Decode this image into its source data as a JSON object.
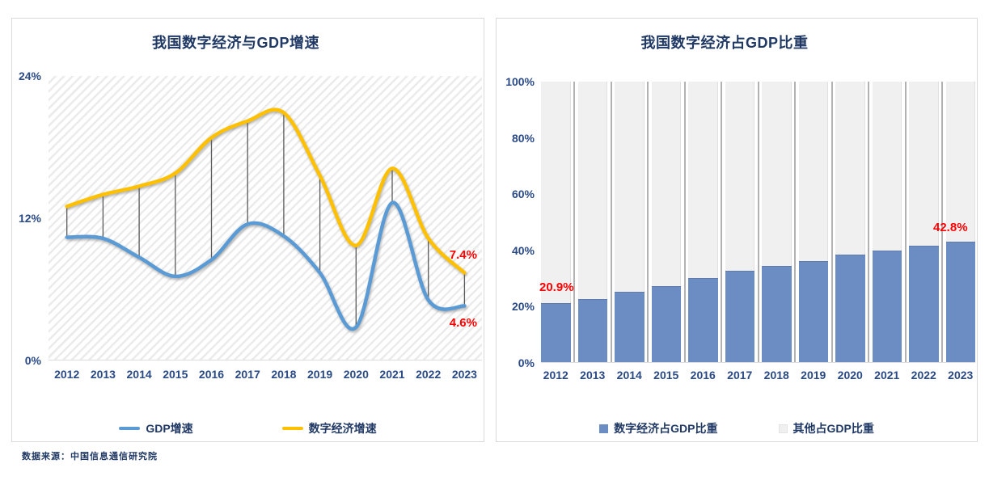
{
  "source_note": "数据来源：中国信息通信研究院",
  "accent_colors": {
    "title_navy": "#1f3864",
    "axis_navy": "#2a4a86",
    "annotation_red": "#ff0000",
    "gdp_line_blue": "#5b9bd5",
    "digital_line_yellow": "#ffc000",
    "bar_blue": "#6b8dc3",
    "bar_gray": "#f0f0f0",
    "high_low_line_gray": "#595959"
  },
  "chart_data": [
    {
      "type": "line",
      "title": "我国数字经济与GDP增速",
      "x": [
        "2012",
        "2013",
        "2014",
        "2015",
        "2016",
        "2017",
        "2018",
        "2019",
        "2020",
        "2021",
        "2022",
        "2023"
      ],
      "series": [
        {
          "name": "GDP增速",
          "color": "#5b9bd5",
          "values": [
            10.4,
            10.3,
            8.7,
            7.1,
            8.5,
            11.5,
            10.5,
            7.4,
            2.8,
            13.3,
            5.1,
            4.6
          ]
        },
        {
          "name": "数字经济增速",
          "color": "#ffc000",
          "values": [
            13.0,
            14.0,
            14.7,
            15.8,
            18.8,
            20.2,
            20.9,
            15.6,
            9.7,
            16.2,
            10.3,
            7.4
          ]
        }
      ],
      "ylim": [
        0,
        24
      ],
      "y_ticks": [
        {
          "value": 24,
          "label": "24%"
        },
        {
          "value": 12,
          "label": "12%"
        },
        {
          "value": 0,
          "label": "0%"
        }
      ],
      "grid": false,
      "high_low_lines": true,
      "smooth": true,
      "legend_position": "bottom",
      "plot_background": "diagonal-hatch",
      "annotations": [
        {
          "text": "7.4%",
          "series": "数字经济增速",
          "x": "2023",
          "color": "#ff0000"
        },
        {
          "text": "4.6%",
          "series": "GDP增速",
          "x": "2023",
          "color": "#ff0000"
        }
      ]
    },
    {
      "type": "bar",
      "stacked": true,
      "title": "我国数字经济占GDP比重",
      "categories": [
        "2012",
        "2013",
        "2014",
        "2015",
        "2016",
        "2017",
        "2018",
        "2019",
        "2020",
        "2021",
        "2022",
        "2023"
      ],
      "series": [
        {
          "name": "数字经济占GDP比重",
          "color": "#6b8dc3",
          "values": [
            20.9,
            22.6,
            25.0,
            27.1,
            30.1,
            32.5,
            34.2,
            36.0,
            38.3,
            39.7,
            41.4,
            42.8
          ]
        },
        {
          "name": "其他占GDP比重",
          "color": "#f0f0f0",
          "values": [
            79.1,
            77.4,
            75.0,
            72.9,
            69.9,
            67.5,
            65.8,
            64.0,
            61.7,
            60.3,
            58.6,
            57.2
          ]
        }
      ],
      "ylim": [
        0,
        100
      ],
      "y_ticks": [
        {
          "value": 100,
          "label": "100%"
        },
        {
          "value": 80,
          "label": "80%"
        },
        {
          "value": 60,
          "label": "60%"
        },
        {
          "value": 40,
          "label": "40%"
        },
        {
          "value": 20,
          "label": "20%"
        },
        {
          "value": 0,
          "label": "0%"
        }
      ],
      "grid": false,
      "legend_position": "bottom",
      "annotations": [
        {
          "text": "20.9%",
          "x": "2012",
          "color": "#ff0000"
        },
        {
          "text": "42.8%",
          "x": "2023",
          "color": "#ff0000"
        }
      ]
    }
  ]
}
